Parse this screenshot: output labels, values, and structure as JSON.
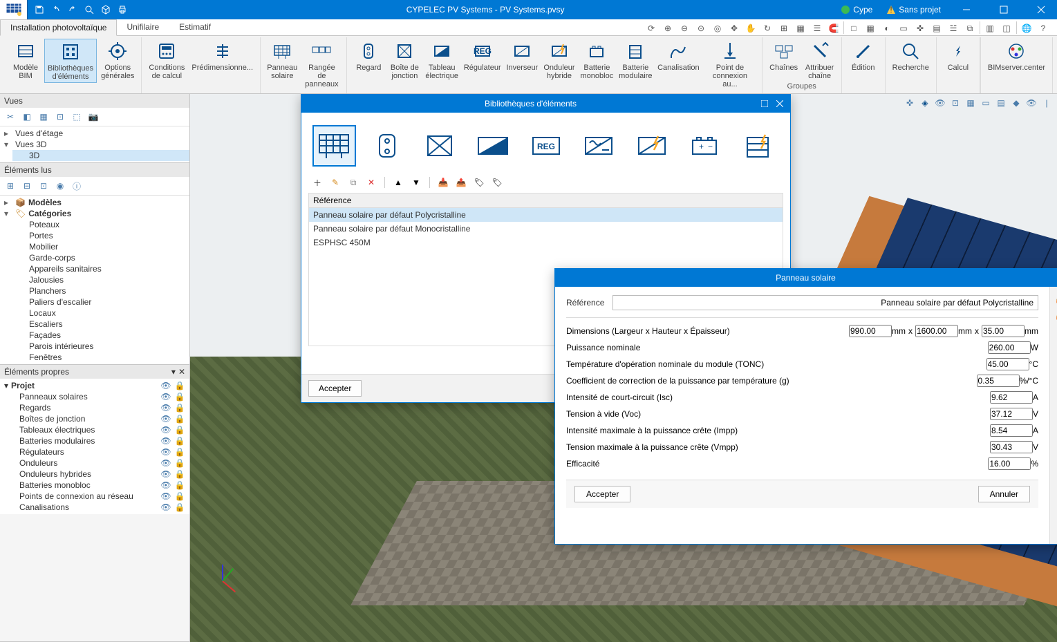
{
  "app": {
    "title": "CYPELEC PV Systems - PV Systems.pvsy",
    "brand": "Cype",
    "project_status": "Sans projet"
  },
  "tabs": {
    "items": [
      "Installation photovoltaïque",
      "Unifilaire",
      "Estimatif"
    ],
    "active_index": 0
  },
  "ribbon": {
    "items": [
      {
        "label": "Modèle\nBIM"
      },
      {
        "label": "Bibliothèques\nd'éléments",
        "selected": true
      },
      {
        "label": "Options\ngénérales"
      },
      {
        "label": "Conditions\nde calcul"
      },
      {
        "label": "Prédimensionne..."
      },
      {
        "label": "Panneau\nsolaire"
      },
      {
        "label": "Rangée de\npanneaux"
      },
      {
        "label": "Regard"
      },
      {
        "label": "Boîte de\njonction"
      },
      {
        "label": "Tableau\nélectrique"
      },
      {
        "label": "Régulateur"
      },
      {
        "label": "Inverseur"
      },
      {
        "label": "Onduleur\nhybride"
      },
      {
        "label": "Batterie\nmonobloc"
      },
      {
        "label": "Batterie\nmodulaire"
      },
      {
        "label": "Canalisation"
      },
      {
        "label": "Point de\nconnexion au..."
      },
      {
        "label": "Chaînes"
      },
      {
        "label": "Attribuer\nchaîne"
      },
      {
        "label": "Édition"
      },
      {
        "label": "Recherche"
      },
      {
        "label": "Calcul"
      },
      {
        "label": "BIMserver.center"
      }
    ],
    "group_label": "Groupes"
  },
  "views_panel": {
    "title": "Vues",
    "floor_views": "Vues d'étage",
    "views_3d": "Vues 3D",
    "view_3d_item": "3D"
  },
  "read_panel": {
    "title": "Éléments lus",
    "models": "Modèles",
    "categories": "Catégories",
    "items": [
      "Poteaux",
      "Portes",
      "Mobilier",
      "Garde-corps",
      "Appareils sanitaires",
      "Jalousies",
      "Planchers",
      "Paliers d'escalier",
      "Locaux",
      "Escaliers",
      "Façades",
      "Parois intérieures",
      "Fenêtres"
    ]
  },
  "own_panel": {
    "title": "Éléments propres",
    "root": "Projet",
    "items": [
      "Panneaux solaires",
      "Regards",
      "Boîtes de jonction",
      "Tableaux électriques",
      "Batteries modulaires",
      "Régulateurs",
      "Onduleurs",
      "Onduleurs hybrides",
      "Batteries monobloc",
      "Points de connexion au réseau",
      "Canalisations"
    ]
  },
  "elib_modal": {
    "title": "Bibliothèques d'éléments",
    "ref_header": "Référence",
    "rows": [
      "Panneau solaire par défaut Polycristalline",
      "Panneau solaire par défaut Monocristalline",
      "ESPHSC 450M"
    ],
    "selected_index": 0,
    "accept": "Accepter"
  },
  "panel_modal": {
    "title": "Panneau solaire",
    "ref_label": "Référence",
    "ref_value": "Panneau solaire par défaut Polycristalline",
    "dim_label": "Dimensions (Largeur x Hauteur x Épaisseur)",
    "dim_w": "990.00",
    "dim_h": "1600.00",
    "dim_t": "35.00",
    "dim_unit": "mm",
    "dim_x": "x",
    "rows": [
      {
        "label": "Puissance nominale",
        "value": "260.00",
        "unit": "W"
      },
      {
        "label": "Température d'opération nominale du module (TONC)",
        "value": "45.00",
        "unit": "°C"
      },
      {
        "label": "Coefficient de correction de la puissance par température (g)",
        "value": "0.35",
        "unit": "%/°C"
      },
      {
        "label": "Intensité de court-circuit (Isc)",
        "value": "9.62",
        "unit": "A"
      },
      {
        "label": "Tension à vide (Voc)",
        "value": "37.12",
        "unit": "V"
      },
      {
        "label": "Intensité maximale à la puissance crête (Impp)",
        "value": "8.54",
        "unit": "A"
      },
      {
        "label": "Tension maximale à la puissance crête (Vmpp)",
        "value": "30.43",
        "unit": "V"
      },
      {
        "label": "Efficacité",
        "value": "16.00",
        "unit": "%"
      }
    ],
    "accept": "Accepter",
    "cancel": "Annuler"
  },
  "colors": {
    "accent": "#0078d4",
    "icon_blue": "#0b4f8c",
    "panel_bg": "#f2f2f2"
  }
}
